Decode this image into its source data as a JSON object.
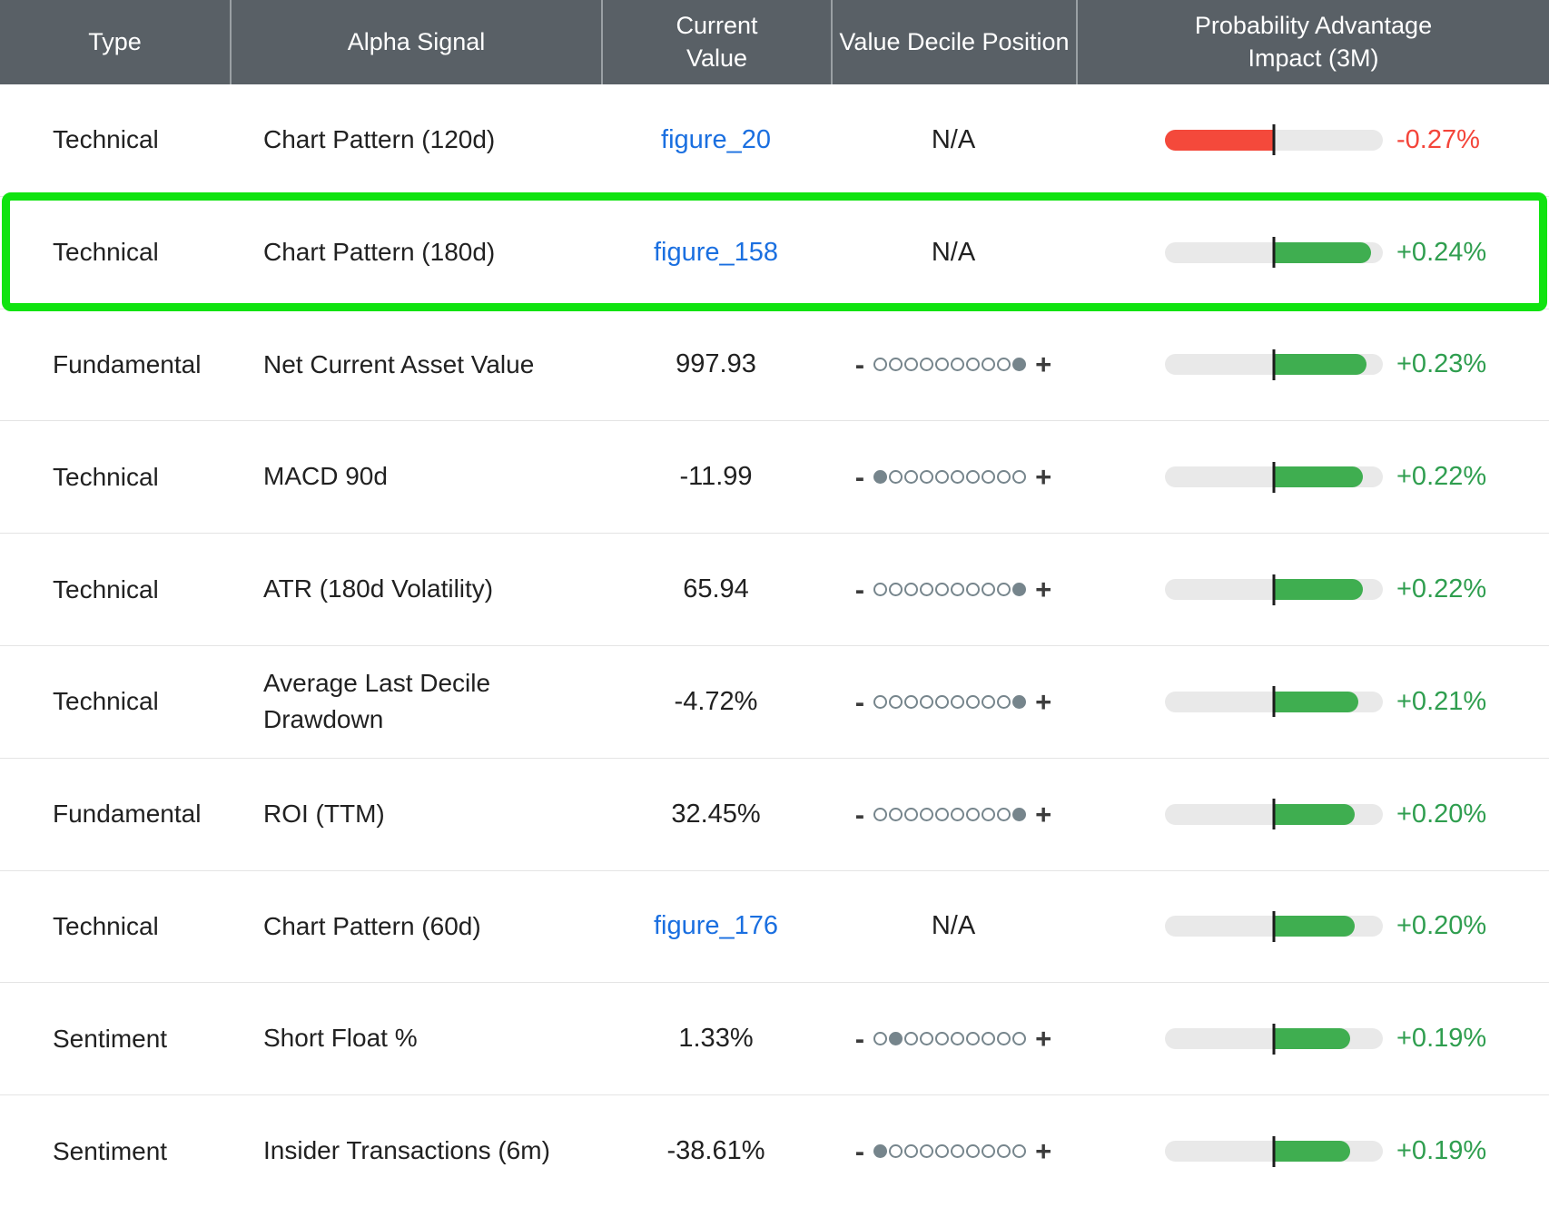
{
  "header": {
    "columns": [
      "Type",
      "Alpha Signal",
      "Current\nValue",
      "Value Decile Position",
      "Probability Advantage\nImpact (3M)"
    ]
  },
  "decile_widget": {
    "dot_count": 10,
    "minus_label": "-",
    "plus_label": "+"
  },
  "impact_scale_max": 0.27,
  "colors": {
    "header_bg": "#596066",
    "highlight_green": "#10e310",
    "bar_green": "#3fae50",
    "bar_red": "#f4493b",
    "text_green": "#2f9e4f",
    "text_red": "#f4453a",
    "link_blue": "#1a6fe0"
  },
  "rows": [
    {
      "type": "Technical",
      "signal": "Chart Pattern (120d)",
      "value": "figure_20",
      "value_is_link": true,
      "decile": "N/A",
      "impact_label": "-0.27%",
      "impact_value": -0.27,
      "highlighted": false
    },
    {
      "type": "Technical",
      "signal": "Chart Pattern (180d)",
      "value": "figure_158",
      "value_is_link": true,
      "decile": "N/A",
      "impact_label": "+0.24%",
      "impact_value": 0.24,
      "highlighted": true
    },
    {
      "type": "Fundamental",
      "signal": "Net Current Asset Value",
      "value": "997.93",
      "value_is_link": false,
      "decile": 10,
      "impact_label": "+0.23%",
      "impact_value": 0.23,
      "highlighted": false
    },
    {
      "type": "Technical",
      "signal": "MACD 90d",
      "value": "-11.99",
      "value_is_link": false,
      "decile": 1,
      "impact_label": "+0.22%",
      "impact_value": 0.22,
      "highlighted": false
    },
    {
      "type": "Technical",
      "signal": "ATR (180d Volatility)",
      "value": "65.94",
      "value_is_link": false,
      "decile": 10,
      "impact_label": "+0.22%",
      "impact_value": 0.22,
      "highlighted": false
    },
    {
      "type": "Technical",
      "signal": "Average Last Decile Drawdown",
      "value": "-4.72%",
      "value_is_link": false,
      "decile": 10,
      "impact_label": "+0.21%",
      "impact_value": 0.21,
      "highlighted": false
    },
    {
      "type": "Fundamental",
      "signal": "ROI (TTM)",
      "value": "32.45%",
      "value_is_link": false,
      "decile": 10,
      "impact_label": "+0.20%",
      "impact_value": 0.2,
      "highlighted": false
    },
    {
      "type": "Technical",
      "signal": "Chart Pattern (60d)",
      "value": "figure_176",
      "value_is_link": true,
      "decile": "N/A",
      "impact_label": "+0.20%",
      "impact_value": 0.2,
      "highlighted": false
    },
    {
      "type": "Sentiment",
      "signal": "Short Float %",
      "value": "1.33%",
      "value_is_link": false,
      "decile": 2,
      "impact_label": "+0.19%",
      "impact_value": 0.19,
      "highlighted": false
    },
    {
      "type": "Sentiment",
      "signal": "Insider Transactions (6m)",
      "value": "-38.61%",
      "value_is_link": false,
      "decile": 1,
      "impact_label": "+0.19%",
      "impact_value": 0.19,
      "highlighted": false
    }
  ]
}
